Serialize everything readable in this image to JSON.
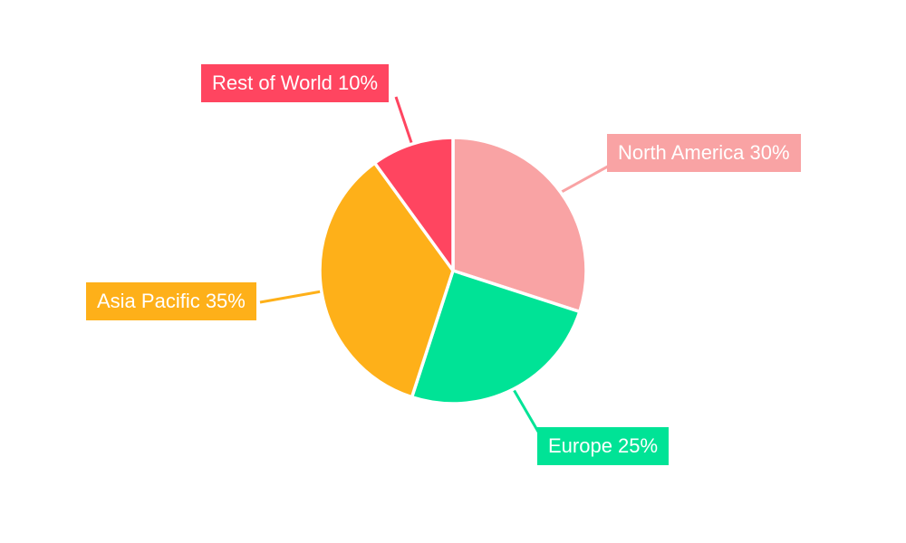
{
  "background": "#FFFFFF",
  "chart_data": {
    "type": "pie",
    "title": "",
    "legend_position": "none",
    "start_angle_deg": 0,
    "direction": "clockwise",
    "label_format": "name percent",
    "categories": [
      "North America",
      "Europe",
      "Asia Pacific",
      "Rest of World"
    ],
    "values": [
      30,
      25,
      35,
      10
    ],
    "slices": [
      {
        "label": "North America",
        "value": 30,
        "display": "North America 30%",
        "color": "#F9A3A4"
      },
      {
        "label": "Europe",
        "value": 25,
        "display": "Europe 25%",
        "color": "#00E396"
      },
      {
        "label": "Asia Pacific",
        "value": 35,
        "display": "Asia Pacific 35%",
        "color": "#FEB019"
      },
      {
        "label": "Rest of World",
        "value": 10,
        "display": "Rest of World 10%",
        "color": "#FF4560"
      }
    ]
  }
}
